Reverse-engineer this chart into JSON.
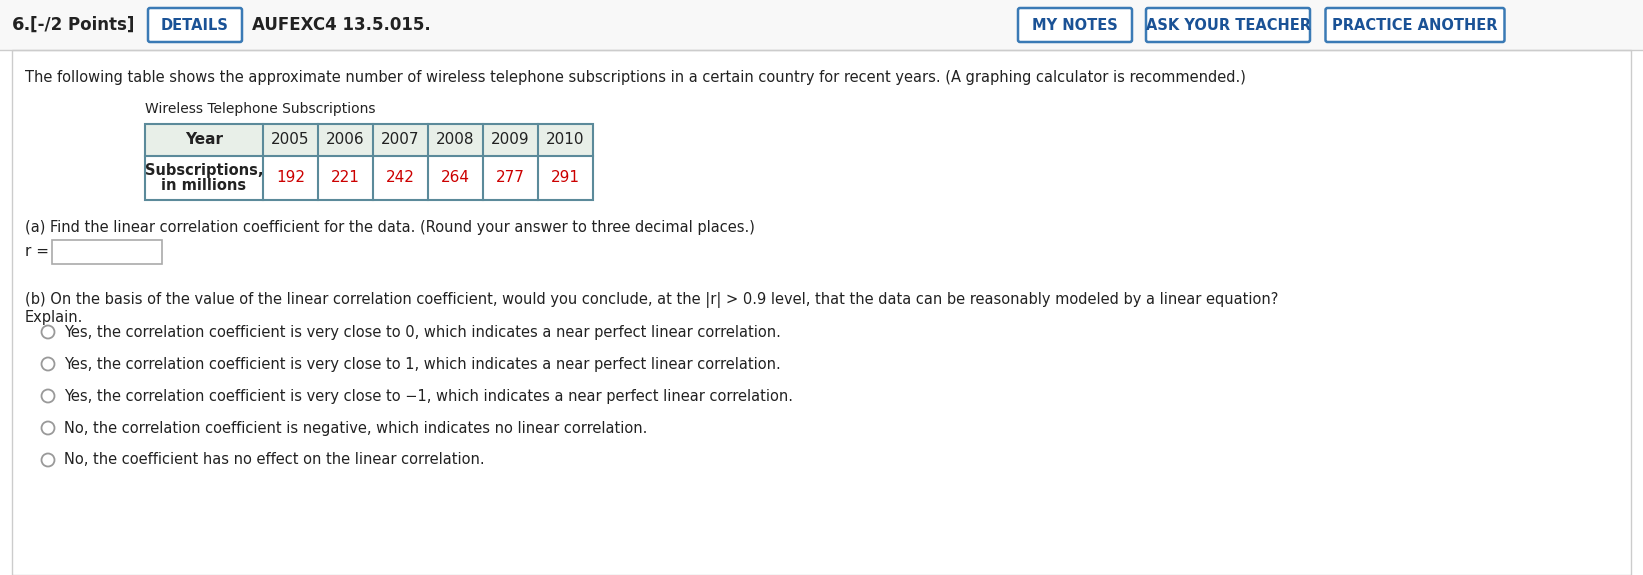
{
  "title_number": "6.",
  "title_points": "[-/2 Points]",
  "btn_details": "DETAILS",
  "btn_code": "AUFEXC4 13.5.015.",
  "btn_my_notes": "MY NOTES",
  "btn_ask_teacher": "ASK YOUR TEACHER",
  "btn_practice": "PRACTICE ANOTHER",
  "intro_text": "The following table shows the approximate number of wireless telephone subscriptions in a certain country for recent years. (A graphing calculator is recommended.)",
  "table_title": "Wireless Telephone Subscriptions",
  "table_headers": [
    "Year",
    "2005",
    "2006",
    "2007",
    "2008",
    "2009",
    "2010"
  ],
  "table_row_label_1": "Subscriptions,",
  "table_row_label_2": "in millions",
  "table_values": [
    "192",
    "221",
    "242",
    "264",
    "277",
    "291"
  ],
  "part_a_text": "(a) Find the linear correlation coefficient for the data. (Round your answer to three decimal places.)",
  "r_label": "r =",
  "part_b_line1": "(b) On the basis of the value of the linear correlation coefficient, would you conclude, at the |r| > 0.9 level, that the data can be reasonably modeled by a linear equation?",
  "part_b_line2": "Explain.",
  "options": [
    "Yes, the correlation coefficient is very close to 0, which indicates a near perfect linear correlation.",
    "Yes, the correlation coefficient is very close to 1, which indicates a near perfect linear correlation.",
    "Yes, the correlation coefficient is very close to −1, which indicates a near perfect linear correlation.",
    "No, the correlation coefficient is negative, which indicates no linear correlation.",
    "No, the coefficient has no effect on the linear correlation."
  ],
  "header_bg_light": "#e8efe8",
  "row_bg": "#ffffff",
  "value_color": "#cc0000",
  "table_border_color": "#5b8a9a",
  "btn_border_color": "#3a7ab5",
  "btn_text_color": "#1a5296",
  "page_bg": "#ffffff",
  "header_bar_bg": "#f8f8f8",
  "text_color": "#222222",
  "radio_color": "#999999",
  "content_border": "#cccccc",
  "header_bottom_border": "#cccccc"
}
